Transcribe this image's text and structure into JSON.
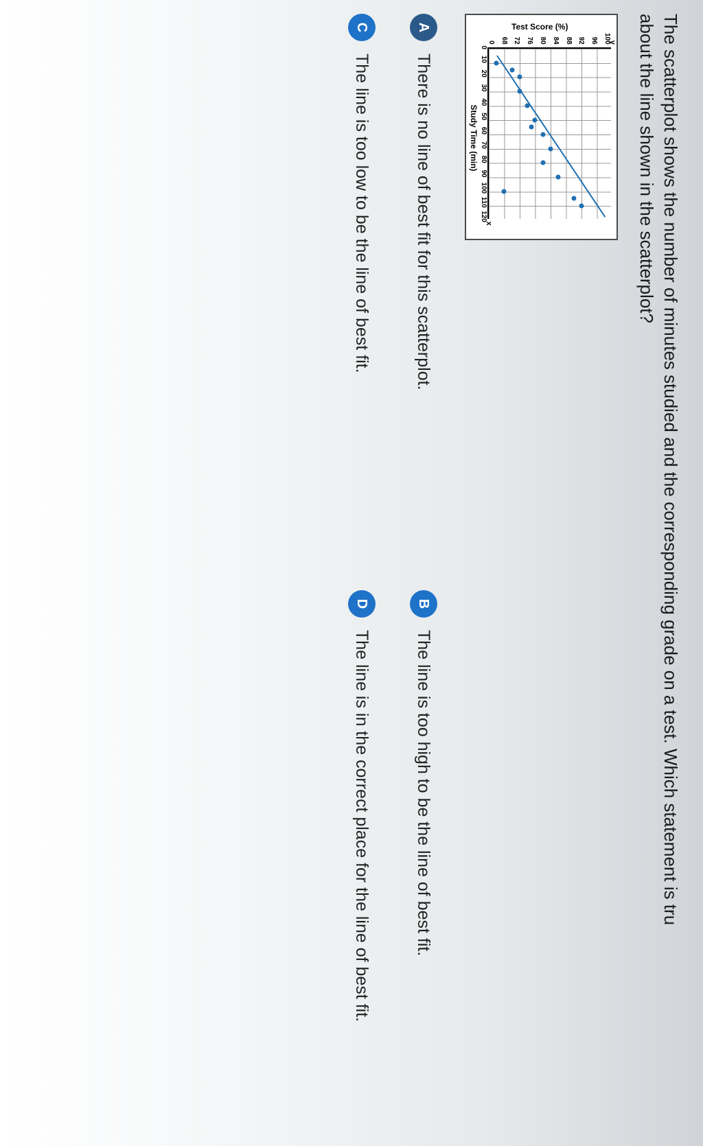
{
  "question_line1": "The scatterplot shows the number of minutes studied and the corresponding grade on a test. Which statement is tru",
  "question_line2": "about the line shown in the scatterplot?",
  "chart": {
    "type": "scatter",
    "ylabel": "Test Score (%)",
    "xlabel": "Study Time (min)",
    "y_axis_var": "y",
    "x_axis_var": "x",
    "yticks": [
      "100",
      "96",
      "92",
      "88",
      "84",
      "80",
      "76",
      "72",
      "68",
      "0"
    ],
    "xticks": [
      "10",
      "20",
      "30",
      "40",
      "50",
      "60",
      "70",
      "80",
      "90",
      "100",
      "110",
      "120"
    ],
    "xlim": [
      0,
      120
    ],
    "ylim": [
      68,
      100
    ],
    "point_color": "#1f6fb2",
    "grid_color": "#999999",
    "background_color": "#ffffff",
    "points": [
      {
        "x": 10,
        "y": 70
      },
      {
        "x": 15,
        "y": 74
      },
      {
        "x": 20,
        "y": 76
      },
      {
        "x": 30,
        "y": 76
      },
      {
        "x": 40,
        "y": 78
      },
      {
        "x": 50,
        "y": 80
      },
      {
        "x": 55,
        "y": 79
      },
      {
        "x": 60,
        "y": 82
      },
      {
        "x": 70,
        "y": 84
      },
      {
        "x": 80,
        "y": 82
      },
      {
        "x": 90,
        "y": 86
      },
      {
        "x": 100,
        "y": 72
      },
      {
        "x": 105,
        "y": 90
      },
      {
        "x": 110,
        "y": 92
      }
    ],
    "fit_line": {
      "x1": 5,
      "y1": 70,
      "x2": 118,
      "y2": 98,
      "color": "#1f6fb2",
      "width": 2
    }
  },
  "answers": {
    "A": {
      "label": "A",
      "text": "There is no line of best fit for this scatterplot.",
      "badge_color": "#2b5a8a"
    },
    "B": {
      "label": "B",
      "text": "The line is too high to be the line of best fit.",
      "badge_color": "#1e73c9"
    },
    "C": {
      "label": "C",
      "text": "The line is too low to be the line of best fit.",
      "badge_color": "#1e73c9"
    },
    "D": {
      "label": "D",
      "text": "The line is in the correct place for the line of best fit.",
      "badge_color": "#1e73c9"
    }
  }
}
